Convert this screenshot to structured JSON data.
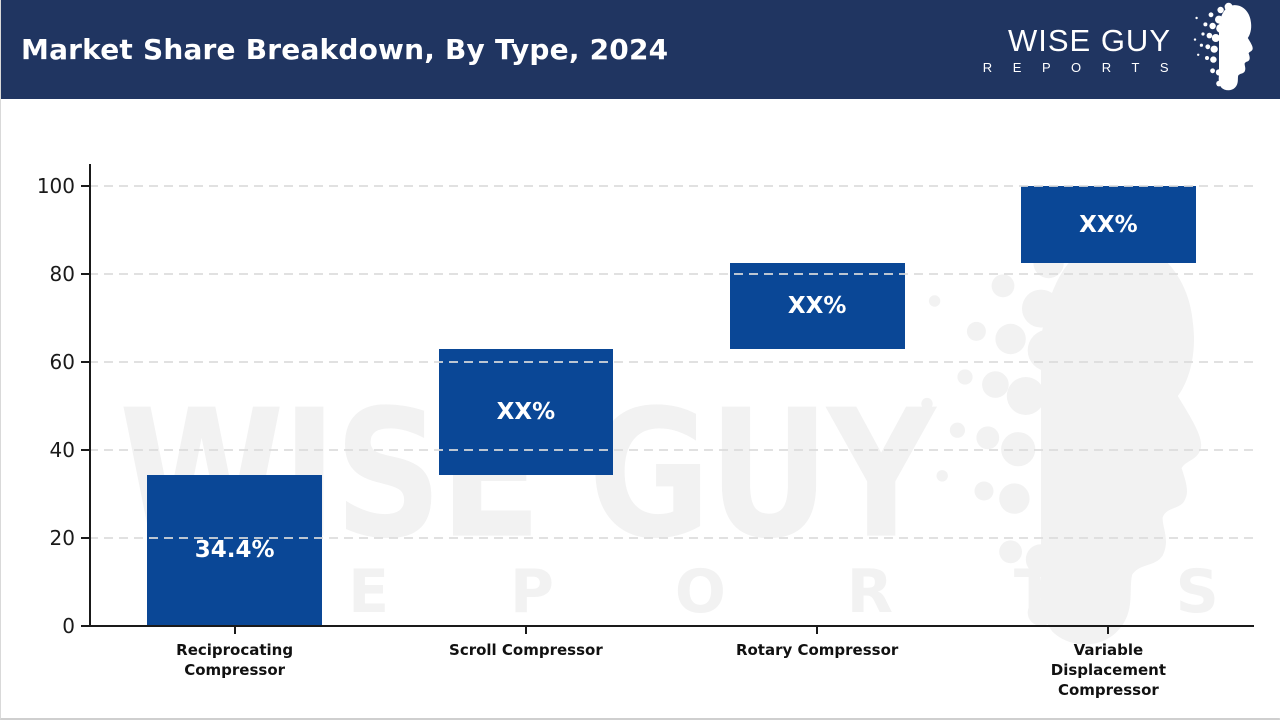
{
  "header": {
    "title": "Market Share Breakdown, By Type, 2024",
    "logo": {
      "line1": "WISE GUY",
      "line2": "R E P O R T S"
    }
  },
  "watermark": {
    "line1": "WISE GUY",
    "line2": "R E P O R T S"
  },
  "colors": {
    "header_bg": "#203561",
    "bar": "#0a4796",
    "grid": "#dcdcdc",
    "axis": "#1a1a1a",
    "bar_label_text": "#ffffff",
    "watermark": "#f2f2f2"
  },
  "chart_data": {
    "type": "bar",
    "subtype": "waterfall",
    "title": "Market Share Breakdown, By Type, 2024",
    "categories": [
      "Reciprocating\nCompressor",
      "Scroll Compressor",
      "Rotary Compressor",
      "Variable\nDisplacement\nCompressor"
    ],
    "segments": [
      {
        "category": "Reciprocating Compressor",
        "start": 0,
        "end": 34.4,
        "value_label": "34.4%"
      },
      {
        "category": "Scroll Compressor",
        "start": 34.4,
        "end": 63,
        "value_label": "XX%"
      },
      {
        "category": "Rotary Compressor",
        "start": 63,
        "end": 82.5,
        "value_label": "XX%"
      },
      {
        "category": "Variable Displacement Compressor",
        "start": 82.5,
        "end": 100,
        "value_label": "XX%"
      }
    ],
    "xlabel": "",
    "ylabel": "",
    "yticks": [
      0,
      20,
      40,
      60,
      80,
      100
    ],
    "ylim": [
      0,
      105
    ],
    "grid": "horizontal-dashed",
    "legend": "none",
    "bar_color": "#0a4796"
  }
}
